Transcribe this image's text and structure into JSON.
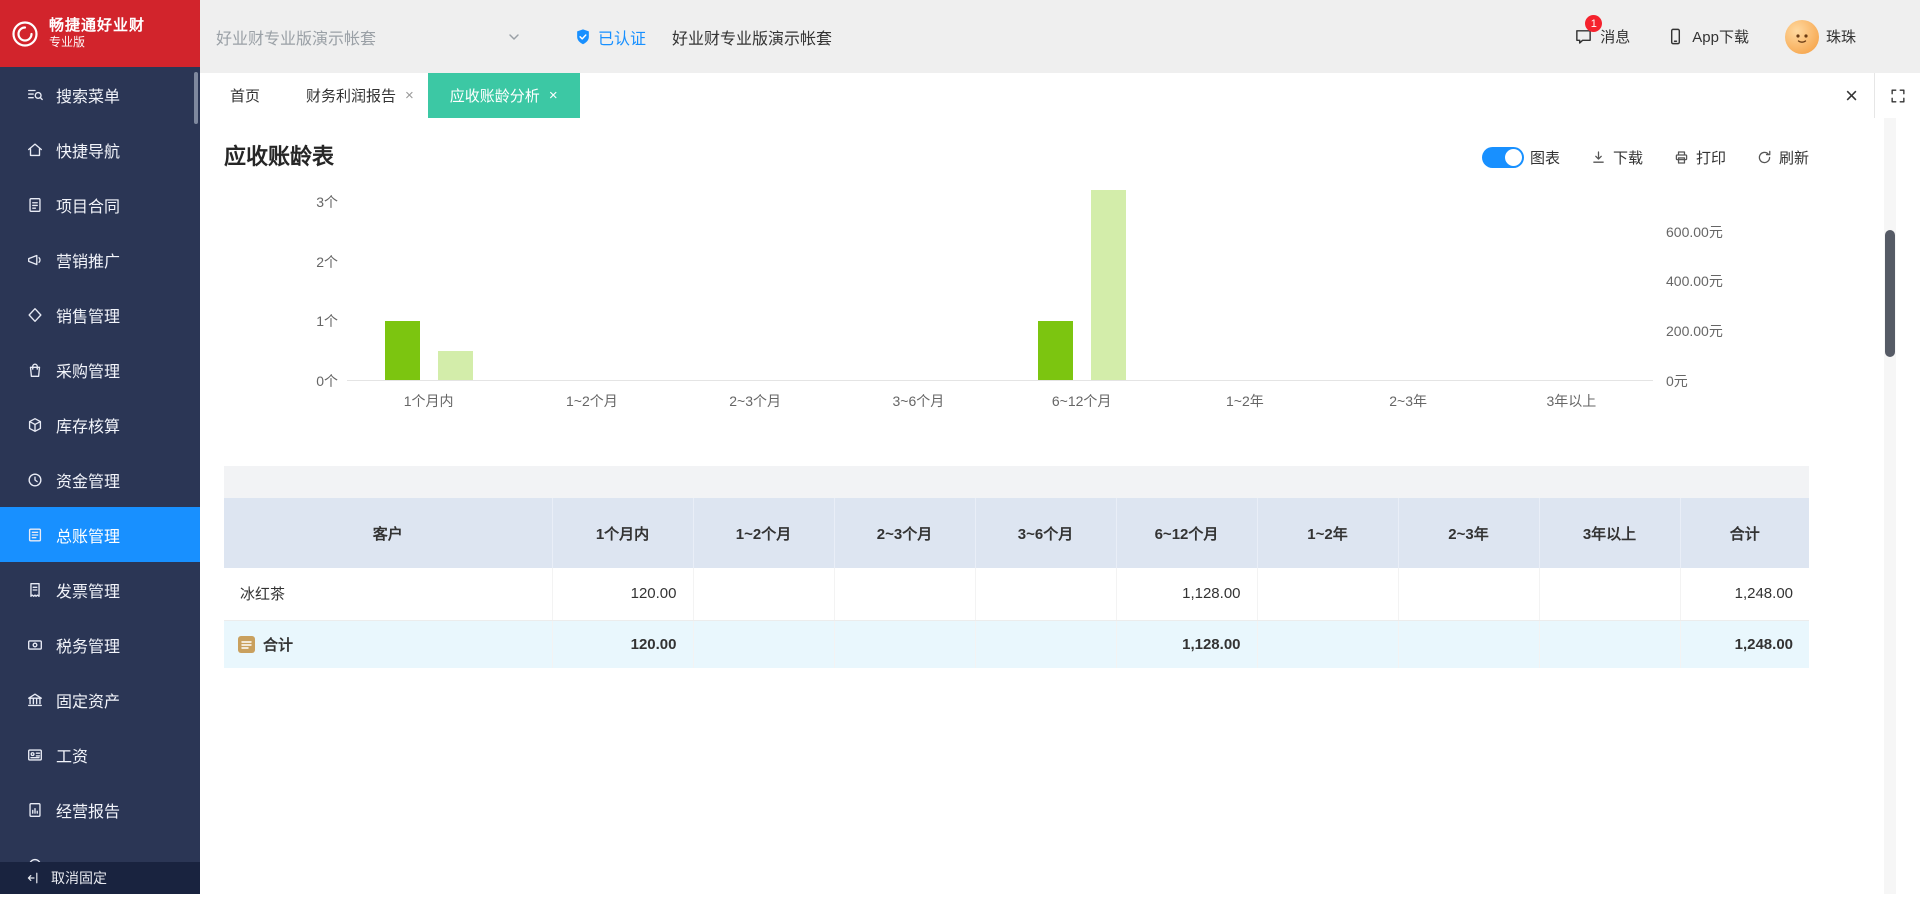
{
  "colors": {
    "sidebar_bg": "#2b3655",
    "sidebar_active": "#1890ff",
    "logo_red": "#d2242c",
    "active_tab_teal": "#3cc8a4",
    "bar_count_green": "#7cc510",
    "bar_amount_light_green": "#d3edaa",
    "table_header_bg": "#dde5f1",
    "total_row_bg": "#e9f7fd",
    "badge_red": "#f5222d",
    "link_blue": "#1890ff"
  },
  "sidebar": {
    "logo_line1": "畅捷通好业财",
    "logo_line2": "专业版",
    "items": [
      {
        "label": "搜索菜单"
      },
      {
        "label": "快捷导航"
      },
      {
        "label": "项目合同"
      },
      {
        "label": "营销推广"
      },
      {
        "label": "销售管理"
      },
      {
        "label": "采购管理"
      },
      {
        "label": "库存核算"
      },
      {
        "label": "资金管理"
      },
      {
        "label": "总账管理",
        "active": true
      },
      {
        "label": "发票管理"
      },
      {
        "label": "税务管理"
      },
      {
        "label": "固定资产"
      },
      {
        "label": "工资"
      },
      {
        "label": "经营报告"
      },
      {
        "label": ""
      }
    ],
    "unpin_label": "取消固定"
  },
  "topbar": {
    "account_selector": "好业财专业版演示帐套",
    "certified_badge": "已认证",
    "account_name": "好业财专业版演示帐套",
    "messages_label": "消息",
    "messages_badge": "1",
    "app_download_label": "App下载",
    "user_name": "珠珠"
  },
  "tabs": [
    {
      "label": "首页",
      "closable": false,
      "active": false
    },
    {
      "label": "财务利润报告",
      "closable": true,
      "active": false
    },
    {
      "label": "应收账龄分析",
      "closable": true,
      "active": true
    }
  ],
  "tab_controls": {
    "close_all": "×"
  },
  "toolbar": {
    "page_title": "应收账龄表",
    "chart_toggle_label": "图表",
    "chart_toggle_on": true,
    "download_label": "下载",
    "print_label": "打印",
    "refresh_label": "刷新"
  },
  "chart_data": {
    "type": "bar",
    "categories": [
      "1个月内",
      "1~2个月",
      "2~3个月",
      "3~6个月",
      "6~12个月",
      "1~2年",
      "2~3年",
      "3年以上"
    ],
    "series": [
      {
        "name": "个",
        "axis": "left",
        "unit": "个",
        "color": "#7cc510",
        "values": [
          1,
          0,
          0,
          0,
          1,
          0,
          0,
          0
        ]
      },
      {
        "name": "元",
        "axis": "right",
        "unit": "元",
        "color": "#d3edaa",
        "values": [
          120,
          0,
          0,
          0,
          1128,
          0,
          0,
          0
        ]
      }
    ],
    "left_axis_ticks": [
      "0个",
      "1个",
      "2个",
      "3个"
    ],
    "right_axis_ticks": [
      "0元",
      "200.00元",
      "400.00元",
      "600.00元"
    ],
    "right_axis_tick_step": 200,
    "grid": false,
    "legend": false,
    "viewport_note": "chart area vertically scrolled; tallest amount bar clipped at top"
  },
  "table": {
    "headers": [
      "客户",
      "1个月内",
      "1~2个月",
      "2~3个月",
      "3~6个月",
      "6~12个月",
      "1~2年",
      "2~3年",
      "3年以上",
      "合计"
    ],
    "rows": [
      {
        "customer": "冰红茶",
        "values": [
          "120.00",
          "",
          "",
          "",
          "1,128.00",
          "",
          "",
          "",
          "1,248.00"
        ]
      }
    ],
    "total_row": {
      "label": "合计",
      "values": [
        "120.00",
        "",
        "",
        "",
        "1,128.00",
        "",
        "",
        "",
        "1,248.00"
      ]
    }
  }
}
